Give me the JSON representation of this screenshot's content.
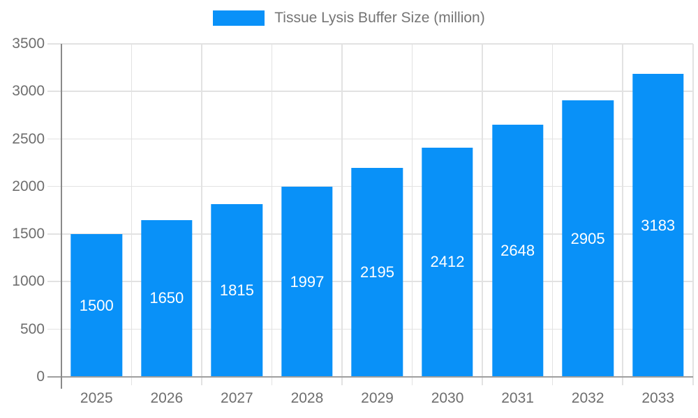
{
  "legend": {
    "label": "Tissue Lysis Buffer Size (million)"
  },
  "colors": {
    "bar": "#0991f8",
    "grid": "#e2e2e2",
    "axis": "#9e9e9e",
    "text": "#6e6e6e",
    "value_label": "#ffffff"
  },
  "chart_data": {
    "type": "bar",
    "title": "",
    "legend": "Tissue Lysis Buffer Size (million)",
    "legend_position": "top",
    "categories": [
      "2025",
      "2026",
      "2027",
      "2028",
      "2029",
      "2030",
      "2031",
      "2032",
      "2033"
    ],
    "values": [
      1500,
      1650,
      1815,
      1997,
      2195,
      2412,
      2648,
      2905,
      3183
    ],
    "xlabel": "",
    "ylabel": "",
    "ylim": [
      0,
      3500
    ],
    "yticks": [
      0,
      500,
      1000,
      1500,
      2000,
      2500,
      3000,
      3500
    ],
    "grid": true,
    "value_labels": "centered-in-bar"
  }
}
